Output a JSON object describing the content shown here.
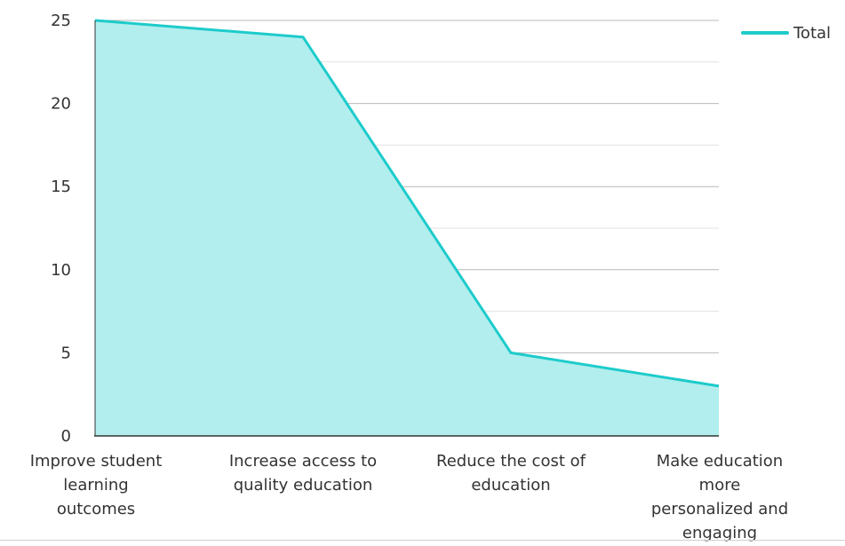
{
  "chart_data": {
    "type": "area",
    "categories": [
      [
        "Improve student",
        "learning",
        "outcomes"
      ],
      [
        "Increase access to",
        "quality education"
      ],
      [
        "Reduce the cost of",
        "education"
      ],
      [
        "Make education",
        "more",
        "personalized and",
        "engaging"
      ]
    ],
    "series": [
      {
        "name": "Total",
        "values": [
          25,
          24,
          5,
          3
        ]
      }
    ],
    "ylim": [
      0,
      25
    ],
    "yticks": [
      0,
      5,
      10,
      15,
      20,
      25
    ],
    "grid": true,
    "legend": "top-right",
    "colors": {
      "line": "#1ECBCB",
      "fill": "#B2EEEE",
      "grid_major": "#B8B8B8",
      "grid_minor": "#E2E2E2",
      "axis": "#333333"
    }
  }
}
